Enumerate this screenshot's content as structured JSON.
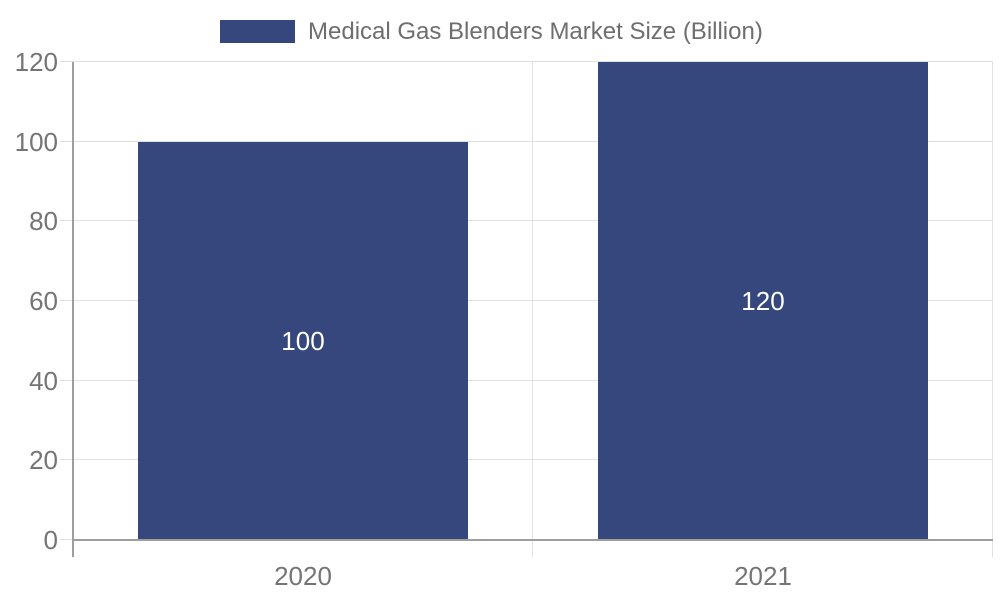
{
  "legend": {
    "label": "Medical Gas Blenders Market Size (Billion)"
  },
  "chart_data": {
    "type": "bar",
    "title": "Medical Gas Blenders Market Size (Billion)",
    "categories": [
      "2020",
      "2021"
    ],
    "values": [
      100,
      120
    ],
    "value_labels": [
      "100",
      "120"
    ],
    "series": [
      {
        "name": "Medical Gas Blenders Market Size (Billion)",
        "values": [
          100,
          120
        ]
      }
    ],
    "xlabel": "",
    "ylabel": "",
    "ylim": [
      0,
      120
    ],
    "yticks": [
      0,
      20,
      40,
      60,
      80,
      100,
      120
    ],
    "grid": true,
    "legend_position": "top",
    "colors": {
      "bar": "#35477d",
      "grid": "#e0e0e0",
      "axis": "#9e9e9e",
      "tick_label": "#757575",
      "value_label": "#ffffff"
    }
  }
}
